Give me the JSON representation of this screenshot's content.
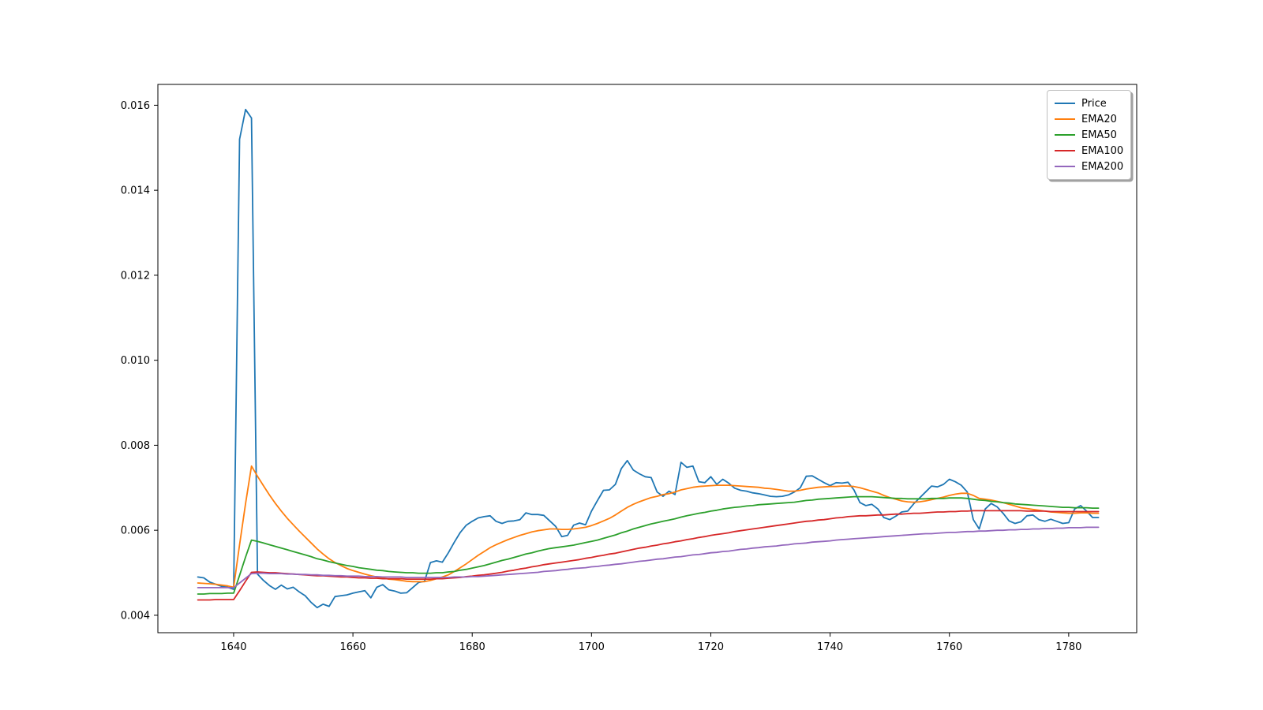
{
  "chart_data": {
    "type": "line",
    "title": "",
    "xlabel": "",
    "ylabel": "",
    "xlim": [
      1627.3,
      1791.4
    ],
    "ylim": [
      0.00359,
      0.01649
    ],
    "xticks": [
      1640,
      1660,
      1680,
      1700,
      1720,
      1740,
      1760,
      1780
    ],
    "yticks": [
      0.004,
      0.006,
      0.008,
      0.01,
      0.012,
      0.014,
      0.016
    ],
    "grid": false,
    "legend_position": "upper right",
    "x_start": 1634,
    "x_step": 1,
    "series": [
      {
        "name": "Price",
        "color": "#1f77b4",
        "values": [
          0.0049,
          0.00488,
          0.00478,
          0.00473,
          0.00468,
          0.00466,
          0.00461,
          0.0152,
          0.0159,
          0.0157,
          0.00497,
          0.00482,
          0.0047,
          0.00461,
          0.00471,
          0.00462,
          0.00466,
          0.00455,
          0.00446,
          0.0043,
          0.00418,
          0.00426,
          0.00421,
          0.00444,
          0.00446,
          0.00448,
          0.00452,
          0.00455,
          0.00458,
          0.00441,
          0.00466,
          0.00472,
          0.0046,
          0.00457,
          0.00452,
          0.00453,
          0.00465,
          0.00477,
          0.0048,
          0.00524,
          0.00528,
          0.00525,
          0.00547,
          0.00572,
          0.00595,
          0.00612,
          0.00621,
          0.00629,
          0.00632,
          0.00634,
          0.00621,
          0.00616,
          0.00621,
          0.00622,
          0.00625,
          0.00641,
          0.00637,
          0.00637,
          0.00635,
          0.00622,
          0.00609,
          0.00585,
          0.00588,
          0.00612,
          0.00617,
          0.00613,
          0.00645,
          0.0067,
          0.00694,
          0.00695,
          0.00708,
          0.00745,
          0.00764,
          0.00742,
          0.00733,
          0.00726,
          0.00724,
          0.0069,
          0.0068,
          0.00692,
          0.00684,
          0.0076,
          0.00748,
          0.00751,
          0.00714,
          0.00712,
          0.00726,
          0.00708,
          0.0072,
          0.00711,
          0.00699,
          0.00694,
          0.00692,
          0.00688,
          0.00686,
          0.00683,
          0.0068,
          0.00679,
          0.0068,
          0.00683,
          0.0069,
          0.007,
          0.00727,
          0.00728,
          0.0072,
          0.00712,
          0.00705,
          0.00712,
          0.00711,
          0.00713,
          0.00695,
          0.00665,
          0.00658,
          0.00661,
          0.0065,
          0.0063,
          0.00625,
          0.00633,
          0.00643,
          0.00645,
          0.00662,
          0.00676,
          0.0069,
          0.00704,
          0.00702,
          0.00708,
          0.0072,
          0.00714,
          0.00706,
          0.0069,
          0.00625,
          0.00603,
          0.0065,
          0.00663,
          0.00655,
          0.0064,
          0.00622,
          0.00616,
          0.0062,
          0.00634,
          0.00636,
          0.00625,
          0.00621,
          0.00626,
          0.00621,
          0.00616,
          0.00618,
          0.0065,
          0.00658,
          0.00645,
          0.0063,
          0.0063
        ]
      },
      {
        "name": "EMA20",
        "color": "#ff7f0e",
        "values": [
          0.00476,
          0.00475,
          0.00474,
          0.00473,
          0.00471,
          0.00469,
          0.00466,
          0.00566,
          0.00663,
          0.00751,
          0.00727,
          0.00705,
          0.00683,
          0.00663,
          0.00645,
          0.00628,
          0.00613,
          0.00598,
          0.00584,
          0.0057,
          0.00556,
          0.00544,
          0.00533,
          0.00524,
          0.00517,
          0.0051,
          0.00505,
          0.00501,
          0.00497,
          0.00493,
          0.0049,
          0.00488,
          0.00485,
          0.00484,
          0.00482,
          0.0048,
          0.00479,
          0.00479,
          0.00479,
          0.00482,
          0.00486,
          0.0049,
          0.00495,
          0.00503,
          0.00512,
          0.00521,
          0.00531,
          0.00541,
          0.0055,
          0.00559,
          0.00566,
          0.00572,
          0.00578,
          0.00583,
          0.00588,
          0.00592,
          0.00596,
          0.00599,
          0.00601,
          0.00603,
          0.00603,
          0.00602,
          0.00602,
          0.00603,
          0.00605,
          0.00607,
          0.00611,
          0.00616,
          0.00622,
          0.00628,
          0.00636,
          0.00645,
          0.00654,
          0.00661,
          0.00667,
          0.00672,
          0.00677,
          0.0068,
          0.00684,
          0.00686,
          0.0069,
          0.00695,
          0.00698,
          0.00701,
          0.00703,
          0.00704,
          0.00705,
          0.00706,
          0.00706,
          0.00706,
          0.00705,
          0.00704,
          0.00703,
          0.00702,
          0.00701,
          0.00699,
          0.00698,
          0.00696,
          0.00694,
          0.00692,
          0.00692,
          0.00694,
          0.00697,
          0.00699,
          0.00701,
          0.00702,
          0.00703,
          0.00703,
          0.00704,
          0.00704,
          0.00703,
          0.007,
          0.00696,
          0.00692,
          0.00688,
          0.00682,
          0.00677,
          0.00673,
          0.00669,
          0.00667,
          0.00666,
          0.00667,
          0.00669,
          0.00672,
          0.00675,
          0.00678,
          0.00682,
          0.00685,
          0.00687,
          0.00687,
          0.00682,
          0.00675,
          0.00673,
          0.00671,
          0.00668,
          0.00665,
          0.00661,
          0.00657,
          0.00653,
          0.00651,
          0.00649,
          0.00647,
          0.00645,
          0.00643,
          0.00642,
          0.00641,
          0.0064,
          0.0064,
          0.00641,
          0.00641,
          0.0064,
          0.0064
        ]
      },
      {
        "name": "EMA50",
        "color": "#2ca02c",
        "values": [
          0.0045,
          0.0045,
          0.00451,
          0.00451,
          0.00451,
          0.00452,
          0.00452,
          0.00494,
          0.00537,
          0.00577,
          0.00574,
          0.0057,
          0.00566,
          0.00562,
          0.00558,
          0.00554,
          0.0055,
          0.00546,
          0.00542,
          0.00538,
          0.00533,
          0.0053,
          0.00526,
          0.00523,
          0.0052,
          0.00517,
          0.00515,
          0.00512,
          0.0051,
          0.00508,
          0.00506,
          0.00505,
          0.00503,
          0.00502,
          0.00501,
          0.005,
          0.005,
          0.00499,
          0.00499,
          0.00499,
          0.005,
          0.005,
          0.00502,
          0.00503,
          0.00506,
          0.00508,
          0.00511,
          0.00514,
          0.00517,
          0.00521,
          0.00525,
          0.00529,
          0.00532,
          0.00536,
          0.0054,
          0.00544,
          0.00547,
          0.00551,
          0.00554,
          0.00557,
          0.00559,
          0.00561,
          0.00563,
          0.00565,
          0.00568,
          0.00571,
          0.00574,
          0.00577,
          0.00581,
          0.00585,
          0.00589,
          0.00594,
          0.00598,
          0.00603,
          0.00607,
          0.00611,
          0.00615,
          0.00618,
          0.00621,
          0.00624,
          0.00627,
          0.00631,
          0.00634,
          0.00637,
          0.0064,
          0.00642,
          0.00645,
          0.00647,
          0.0065,
          0.00652,
          0.00654,
          0.00655,
          0.00657,
          0.00658,
          0.0066,
          0.00661,
          0.00662,
          0.00663,
          0.00664,
          0.00665,
          0.00666,
          0.00668,
          0.0067,
          0.00671,
          0.00673,
          0.00674,
          0.00675,
          0.00676,
          0.00677,
          0.00678,
          0.00679,
          0.00679,
          0.00679,
          0.00679,
          0.00678,
          0.00677,
          0.00676,
          0.00675,
          0.00675,
          0.00674,
          0.00674,
          0.00674,
          0.00674,
          0.00675,
          0.00675,
          0.00675,
          0.00676,
          0.00676,
          0.00676,
          0.00675,
          0.00673,
          0.00671,
          0.0067,
          0.00668,
          0.00667,
          0.00665,
          0.00664,
          0.00662,
          0.00661,
          0.0066,
          0.00659,
          0.00658,
          0.00657,
          0.00656,
          0.00655,
          0.00654,
          0.00654,
          0.00653,
          0.00653,
          0.00653,
          0.00652,
          0.00652
        ]
      },
      {
        "name": "EMA100",
        "color": "#d62728",
        "values": [
          0.00436,
          0.00436,
          0.00436,
          0.00437,
          0.00437,
          0.00437,
          0.00437,
          0.00458,
          0.0048,
          0.00501,
          0.00502,
          0.00501,
          0.005,
          0.005,
          0.00499,
          0.00498,
          0.00497,
          0.00496,
          0.00495,
          0.00494,
          0.00493,
          0.00493,
          0.00492,
          0.00491,
          0.0049,
          0.0049,
          0.00489,
          0.00488,
          0.00488,
          0.00487,
          0.00487,
          0.00486,
          0.00486,
          0.00486,
          0.00486,
          0.00485,
          0.00485,
          0.00485,
          0.00485,
          0.00485,
          0.00486,
          0.00486,
          0.00487,
          0.00488,
          0.00489,
          0.00491,
          0.00492,
          0.00494,
          0.00495,
          0.00497,
          0.00499,
          0.00501,
          0.00504,
          0.00506,
          0.00509,
          0.00511,
          0.00514,
          0.00516,
          0.00519,
          0.00521,
          0.00523,
          0.00525,
          0.00527,
          0.00529,
          0.00531,
          0.00534,
          0.00536,
          0.00539,
          0.00541,
          0.00544,
          0.00546,
          0.00549,
          0.00552,
          0.00555,
          0.00558,
          0.0056,
          0.00563,
          0.00565,
          0.00568,
          0.0057,
          0.00573,
          0.00575,
          0.00578,
          0.0058,
          0.00583,
          0.00585,
          0.00588,
          0.0059,
          0.00592,
          0.00594,
          0.00597,
          0.00599,
          0.00601,
          0.00603,
          0.00605,
          0.00607,
          0.00609,
          0.00611,
          0.00613,
          0.00615,
          0.00617,
          0.00619,
          0.00621,
          0.00622,
          0.00624,
          0.00625,
          0.00627,
          0.00629,
          0.0063,
          0.00632,
          0.00633,
          0.00634,
          0.00634,
          0.00635,
          0.00636,
          0.00636,
          0.00637,
          0.00638,
          0.00638,
          0.00639,
          0.0064,
          0.0064,
          0.00641,
          0.00642,
          0.00643,
          0.00643,
          0.00644,
          0.00644,
          0.00645,
          0.00645,
          0.00646,
          0.00646,
          0.00646,
          0.00646,
          0.00646,
          0.00646,
          0.00646,
          0.00646,
          0.00646,
          0.00645,
          0.00645,
          0.00645,
          0.00645,
          0.00644,
          0.00644,
          0.00644,
          0.00644,
          0.00644,
          0.00644,
          0.00644,
          0.00644,
          0.00644
        ]
      },
      {
        "name": "EMA200",
        "color": "#9467bd",
        "values": [
          0.00465,
          0.00465,
          0.00465,
          0.00465,
          0.00465,
          0.00465,
          0.00465,
          0.00476,
          0.00487,
          0.00498,
          0.00499,
          0.00499,
          0.00498,
          0.00498,
          0.00498,
          0.00497,
          0.00497,
          0.00496,
          0.00496,
          0.00495,
          0.00495,
          0.00494,
          0.00494,
          0.00493,
          0.00493,
          0.00492,
          0.00492,
          0.00492,
          0.00491,
          0.00491,
          0.00491,
          0.0049,
          0.0049,
          0.0049,
          0.0049,
          0.00489,
          0.00489,
          0.00489,
          0.00489,
          0.00489,
          0.00489,
          0.00489,
          0.00489,
          0.0049,
          0.0049,
          0.0049,
          0.00491,
          0.00491,
          0.00492,
          0.00493,
          0.00494,
          0.00495,
          0.00496,
          0.00497,
          0.00498,
          0.00499,
          0.005,
          0.00501,
          0.00503,
          0.00504,
          0.00505,
          0.00507,
          0.00508,
          0.0051,
          0.00511,
          0.00512,
          0.00514,
          0.00515,
          0.00517,
          0.00518,
          0.0052,
          0.00521,
          0.00523,
          0.00525,
          0.00527,
          0.00528,
          0.0053,
          0.00532,
          0.00533,
          0.00535,
          0.00537,
          0.00538,
          0.0054,
          0.00542,
          0.00543,
          0.00545,
          0.00547,
          0.00548,
          0.0055,
          0.00551,
          0.00553,
          0.00555,
          0.00556,
          0.00558,
          0.00559,
          0.00561,
          0.00562,
          0.00563,
          0.00565,
          0.00566,
          0.00568,
          0.00569,
          0.0057,
          0.00572,
          0.00573,
          0.00574,
          0.00575,
          0.00577,
          0.00578,
          0.00579,
          0.0058,
          0.00581,
          0.00582,
          0.00583,
          0.00584,
          0.00585,
          0.00586,
          0.00587,
          0.00588,
          0.00589,
          0.0059,
          0.00591,
          0.00592,
          0.00592,
          0.00593,
          0.00594,
          0.00595,
          0.00595,
          0.00596,
          0.00597,
          0.00597,
          0.00598,
          0.00598,
          0.00599,
          0.006,
          0.006,
          0.00601,
          0.00601,
          0.00602,
          0.00602,
          0.00603,
          0.00603,
          0.00604,
          0.00604,
          0.00605,
          0.00605,
          0.00606,
          0.00606,
          0.00606,
          0.00607,
          0.00607,
          0.00607
        ]
      }
    ]
  },
  "colors": {
    "background": "#ffffff",
    "axis": "#000000",
    "legend_border": "#bfbfbf"
  }
}
